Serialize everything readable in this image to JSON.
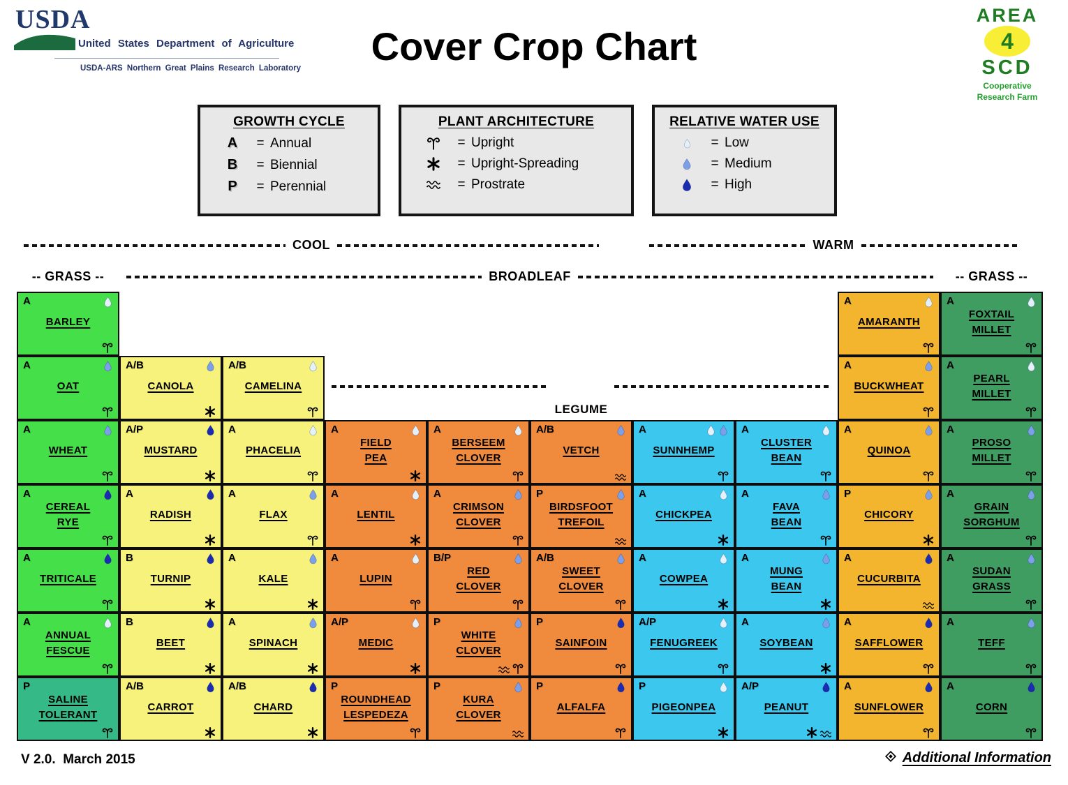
{
  "header": {
    "usda": {
      "wordmark": "USDA",
      "department": "United  States  Department  of  Agriculture",
      "laboratory": "USDA-ARS  Northern  Great  Plains  Research  Laboratory"
    },
    "title": "Cover Crop Chart",
    "area4": {
      "top": "AREA",
      "number": "4",
      "mid": "SCD",
      "sub1": "Cooperative",
      "sub2": "Research Farm"
    }
  },
  "legends": {
    "growth_cycle": {
      "title": "GROWTH CYCLE",
      "items": [
        {
          "key": "A",
          "label": "Annual"
        },
        {
          "key": "B",
          "label": "Biennial"
        },
        {
          "key": "P",
          "label": "Perennial"
        }
      ]
    },
    "plant_architecture": {
      "title": "PLANT ARCHITECTURE",
      "items": [
        {
          "icon": "upright",
          "label": "Upright"
        },
        {
          "icon": "spreading",
          "label": "Upright-Spreading"
        },
        {
          "icon": "prostrate",
          "label": "Prostrate"
        }
      ]
    },
    "water_use": {
      "title": "RELATIVE WATER USE",
      "items": [
        {
          "icon": "low",
          "label": "Low"
        },
        {
          "icon": "medium",
          "label": "Medium"
        },
        {
          "icon": "high",
          "label": "High"
        }
      ]
    }
  },
  "sections": {
    "cool": "COOL",
    "warm": "WARM",
    "grass_left": "-- GRASS --",
    "broadleaf": "BROADLEAF",
    "grass_right": "-- GRASS --",
    "legume": "LEGUME"
  },
  "colors": {
    "cool_grass": "#45e049",
    "saline": "#35b987",
    "cool_broadleaf": "#f6f27c",
    "legume": "#f08b3e",
    "warm_legume": "#3cc7ef",
    "warm_broadleaf": "#f4b52e",
    "warm_grass": "#3f9d62",
    "water_low": "#e4f1fb",
    "water_medium": "#7b9fe8",
    "water_high": "#1b2cb0"
  },
  "crops": [
    {
      "name": "BARLEY",
      "row": 1,
      "col": 1,
      "group": "cool_grass",
      "cycle": "A",
      "water": [
        "low"
      ],
      "arch": [
        "upright"
      ]
    },
    {
      "name": "AMARANTH",
      "row": 1,
      "col": 9,
      "group": "warm_broadleaf",
      "cycle": "A",
      "water": [
        "low"
      ],
      "arch": [
        "upright"
      ]
    },
    {
      "name": "FOXTAIL\nMILLET",
      "row": 1,
      "col": 10,
      "group": "warm_grass",
      "cycle": "A",
      "water": [
        "low"
      ],
      "arch": [
        "upright"
      ]
    },
    {
      "name": "OAT",
      "row": 2,
      "col": 1,
      "group": "cool_grass",
      "cycle": "A",
      "water": [
        "medium"
      ],
      "arch": [
        "upright"
      ]
    },
    {
      "name": "CANOLA",
      "row": 2,
      "col": 2,
      "group": "cool_broadleaf",
      "cycle": "A/B",
      "water": [
        "medium"
      ],
      "arch": [
        "spreading"
      ]
    },
    {
      "name": "CAMELINA",
      "row": 2,
      "col": 3,
      "group": "cool_broadleaf",
      "cycle": "A/B",
      "water": [
        "low"
      ],
      "arch": [
        "upright"
      ]
    },
    {
      "name": "BUCKWHEAT",
      "row": 2,
      "col": 9,
      "group": "warm_broadleaf",
      "cycle": "A",
      "water": [
        "medium"
      ],
      "arch": [
        "upright"
      ]
    },
    {
      "name": "PEARL\nMILLET",
      "row": 2,
      "col": 10,
      "group": "warm_grass",
      "cycle": "A",
      "water": [
        "low"
      ],
      "arch": [
        "upright"
      ]
    },
    {
      "name": "WHEAT",
      "row": 3,
      "col": 1,
      "group": "cool_grass",
      "cycle": "A",
      "water": [
        "medium"
      ],
      "arch": [
        "upright"
      ]
    },
    {
      "name": "MUSTARD",
      "row": 3,
      "col": 2,
      "group": "cool_broadleaf",
      "cycle": "A/P",
      "water": [
        "high"
      ],
      "arch": [
        "spreading"
      ]
    },
    {
      "name": "PHACELIA",
      "row": 3,
      "col": 3,
      "group": "cool_broadleaf",
      "cycle": "A",
      "water": [
        "low"
      ],
      "arch": [
        "upright"
      ]
    },
    {
      "name": "FIELD\nPEA",
      "row": 3,
      "col": 4,
      "group": "legume",
      "cycle": "A",
      "water": [
        "low"
      ],
      "arch": [
        "spreading"
      ]
    },
    {
      "name": "BERSEEM\nCLOVER",
      "row": 3,
      "col": 5,
      "group": "legume",
      "cycle": "A",
      "water": [
        "low"
      ],
      "arch": [
        "upright"
      ]
    },
    {
      "name": "VETCH",
      "row": 3,
      "col": 6,
      "group": "legume",
      "cycle": "A/B",
      "water": [
        "medium"
      ],
      "arch": [
        "prostrate"
      ]
    },
    {
      "name": "SUNNHEMP",
      "row": 3,
      "col": 7,
      "group": "warm_legume",
      "cycle": "A",
      "water": [
        "low",
        "medium"
      ],
      "arch": [
        "upright"
      ]
    },
    {
      "name": "CLUSTER\nBEAN",
      "row": 3,
      "col": 8,
      "group": "warm_legume",
      "cycle": "A",
      "water": [
        "low"
      ],
      "arch": [
        "upright"
      ]
    },
    {
      "name": "QUINOA",
      "row": 3,
      "col": 9,
      "group": "warm_broadleaf",
      "cycle": "A",
      "water": [
        "medium"
      ],
      "arch": [
        "upright"
      ]
    },
    {
      "name": "PROSO\nMILLET",
      "row": 3,
      "col": 10,
      "group": "warm_grass",
      "cycle": "A",
      "water": [
        "medium"
      ],
      "arch": [
        "upright"
      ]
    },
    {
      "name": "CEREAL\nRYE",
      "row": 4,
      "col": 1,
      "group": "cool_grass",
      "cycle": "A",
      "water": [
        "high"
      ],
      "arch": [
        "upright"
      ]
    },
    {
      "name": "RADISH",
      "row": 4,
      "col": 2,
      "group": "cool_broadleaf",
      "cycle": "A",
      "water": [
        "high"
      ],
      "arch": [
        "spreading"
      ]
    },
    {
      "name": "FLAX",
      "row": 4,
      "col": 3,
      "group": "cool_broadleaf",
      "cycle": "A",
      "water": [
        "medium"
      ],
      "arch": [
        "upright"
      ]
    },
    {
      "name": "LENTIL",
      "row": 4,
      "col": 4,
      "group": "legume",
      "cycle": "A",
      "water": [
        "low"
      ],
      "arch": [
        "spreading"
      ]
    },
    {
      "name": "CRIMSON\nCLOVER",
      "row": 4,
      "col": 5,
      "group": "legume",
      "cycle": "A",
      "water": [
        "medium"
      ],
      "arch": [
        "upright"
      ]
    },
    {
      "name": "BIRDSFOOT\nTREFOIL",
      "row": 4,
      "col": 6,
      "group": "legume",
      "cycle": "P",
      "water": [
        "medium"
      ],
      "arch": [
        "prostrate"
      ]
    },
    {
      "name": "CHICKPEA",
      "row": 4,
      "col": 7,
      "group": "warm_legume",
      "cycle": "A",
      "water": [
        "low"
      ],
      "arch": [
        "spreading"
      ]
    },
    {
      "name": "FAVA\nBEAN",
      "row": 4,
      "col": 8,
      "group": "warm_legume",
      "cycle": "A",
      "water": [
        "medium"
      ],
      "arch": [
        "upright"
      ]
    },
    {
      "name": "CHICORY",
      "row": 4,
      "col": 9,
      "group": "warm_broadleaf",
      "cycle": "P",
      "water": [
        "medium"
      ],
      "arch": [
        "spreading"
      ]
    },
    {
      "name": "GRAIN\nSORGHUM",
      "row": 4,
      "col": 10,
      "group": "warm_grass",
      "cycle": "A",
      "water": [
        "medium"
      ],
      "arch": [
        "upright"
      ]
    },
    {
      "name": "TRITICALE",
      "row": 5,
      "col": 1,
      "group": "cool_grass",
      "cycle": "A",
      "water": [
        "high"
      ],
      "arch": [
        "upright"
      ]
    },
    {
      "name": "TURNIP",
      "row": 5,
      "col": 2,
      "group": "cool_broadleaf",
      "cycle": "B",
      "water": [
        "high"
      ],
      "arch": [
        "spreading"
      ]
    },
    {
      "name": "KALE",
      "row": 5,
      "col": 3,
      "group": "cool_broadleaf",
      "cycle": "A",
      "water": [
        "medium"
      ],
      "arch": [
        "spreading"
      ]
    },
    {
      "name": "LUPIN",
      "row": 5,
      "col": 4,
      "group": "legume",
      "cycle": "A",
      "water": [
        "low"
      ],
      "arch": [
        "upright"
      ]
    },
    {
      "name": "RED\nCLOVER",
      "row": 5,
      "col": 5,
      "group": "legume",
      "cycle": "B/P",
      "water": [
        "medium"
      ],
      "arch": [
        "upright"
      ]
    },
    {
      "name": "SWEET\nCLOVER",
      "row": 5,
      "col": 6,
      "group": "legume",
      "cycle": "A/B",
      "water": [
        "medium"
      ],
      "arch": [
        "upright"
      ]
    },
    {
      "name": "COWPEA",
      "row": 5,
      "col": 7,
      "group": "warm_legume",
      "cycle": "A",
      "water": [
        "low"
      ],
      "arch": [
        "spreading"
      ]
    },
    {
      "name": "MUNG\nBEAN",
      "row": 5,
      "col": 8,
      "group": "warm_legume",
      "cycle": "A",
      "water": [
        "medium"
      ],
      "arch": [
        "spreading"
      ]
    },
    {
      "name": "CUCURBITA",
      "row": 5,
      "col": 9,
      "group": "warm_broadleaf",
      "cycle": "A",
      "water": [
        "high"
      ],
      "arch": [
        "prostrate"
      ]
    },
    {
      "name": "SUDAN\nGRASS",
      "row": 5,
      "col": 10,
      "group": "warm_grass",
      "cycle": "A",
      "water": [
        "medium"
      ],
      "arch": [
        "upright"
      ]
    },
    {
      "name": "ANNUAL\nFESCUE",
      "row": 6,
      "col": 1,
      "group": "cool_grass",
      "cycle": "A",
      "water": [
        "low"
      ],
      "arch": [
        "upright"
      ]
    },
    {
      "name": "BEET",
      "row": 6,
      "col": 2,
      "group": "cool_broadleaf",
      "cycle": "B",
      "water": [
        "high"
      ],
      "arch": [
        "spreading"
      ]
    },
    {
      "name": "SPINACH",
      "row": 6,
      "col": 3,
      "group": "cool_broadleaf",
      "cycle": "A",
      "water": [
        "medium"
      ],
      "arch": [
        "spreading"
      ]
    },
    {
      "name": "MEDIC",
      "row": 6,
      "col": 4,
      "group": "legume",
      "cycle": "A/P",
      "water": [
        "low"
      ],
      "arch": [
        "spreading"
      ]
    },
    {
      "name": "WHITE\nCLOVER",
      "row": 6,
      "col": 5,
      "group": "legume",
      "cycle": "P",
      "water": [
        "medium"
      ],
      "arch": [
        "prostrate",
        "upright"
      ]
    },
    {
      "name": "SAINFOIN",
      "row": 6,
      "col": 6,
      "group": "legume",
      "cycle": "P",
      "water": [
        "high"
      ],
      "arch": [
        "upright"
      ]
    },
    {
      "name": "FENUGREEK",
      "row": 6,
      "col": 7,
      "group": "warm_legume",
      "cycle": "A/P",
      "water": [
        "low"
      ],
      "arch": [
        "upright"
      ]
    },
    {
      "name": "SOYBEAN",
      "row": 6,
      "col": 8,
      "group": "warm_legume",
      "cycle": "A",
      "water": [
        "medium"
      ],
      "arch": [
        "spreading"
      ]
    },
    {
      "name": "SAFFLOWER",
      "row": 6,
      "col": 9,
      "group": "warm_broadleaf",
      "cycle": "A",
      "water": [
        "high"
      ],
      "arch": [
        "upright"
      ]
    },
    {
      "name": "TEFF",
      "row": 6,
      "col": 10,
      "group": "warm_grass",
      "cycle": "A",
      "water": [
        "medium"
      ],
      "arch": [
        "upright"
      ]
    },
    {
      "name": "SALINE\nTOLERANT",
      "row": 7,
      "col": 1,
      "group": "saline",
      "cycle": "P",
      "water": [],
      "arch": [
        "upright"
      ]
    },
    {
      "name": "CARROT",
      "row": 7,
      "col": 2,
      "group": "cool_broadleaf",
      "cycle": "A/B",
      "water": [
        "high"
      ],
      "arch": [
        "spreading"
      ]
    },
    {
      "name": "CHARD",
      "row": 7,
      "col": 3,
      "group": "cool_broadleaf",
      "cycle": "A/B",
      "water": [
        "high"
      ],
      "arch": [
        "spreading"
      ]
    },
    {
      "name": "ROUNDHEAD\nLESPEDEZA",
      "row": 7,
      "col": 4,
      "group": "legume",
      "cycle": "P",
      "water": [],
      "arch": [
        "upright"
      ]
    },
    {
      "name": "KURA\nCLOVER",
      "row": 7,
      "col": 5,
      "group": "legume",
      "cycle": "P",
      "water": [
        "medium"
      ],
      "arch": [
        "prostrate"
      ]
    },
    {
      "name": "ALFALFA",
      "row": 7,
      "col": 6,
      "group": "legume",
      "cycle": "P",
      "water": [
        "high"
      ],
      "arch": [
        "upright"
      ]
    },
    {
      "name": "PIGEONPEA",
      "row": 7,
      "col": 7,
      "group": "warm_legume",
      "cycle": "P",
      "water": [
        "low"
      ],
      "arch": [
        "spreading"
      ]
    },
    {
      "name": "PEANUT",
      "row": 7,
      "col": 8,
      "group": "warm_legume",
      "cycle": "A/P",
      "water": [
        "high"
      ],
      "arch": [
        "spreading",
        "prostrate"
      ]
    },
    {
      "name": "SUNFLOWER",
      "row": 7,
      "col": 9,
      "group": "warm_broadleaf",
      "cycle": "A",
      "water": [
        "high"
      ],
      "arch": [
        "upright"
      ]
    },
    {
      "name": "CORN",
      "row": 7,
      "col": 10,
      "group": "warm_grass",
      "cycle": "A",
      "water": [
        "high"
      ],
      "arch": [
        "upright"
      ]
    }
  ],
  "footer": {
    "version": "V 2.0.  March 2015",
    "additional_info": "Additional Information"
  }
}
